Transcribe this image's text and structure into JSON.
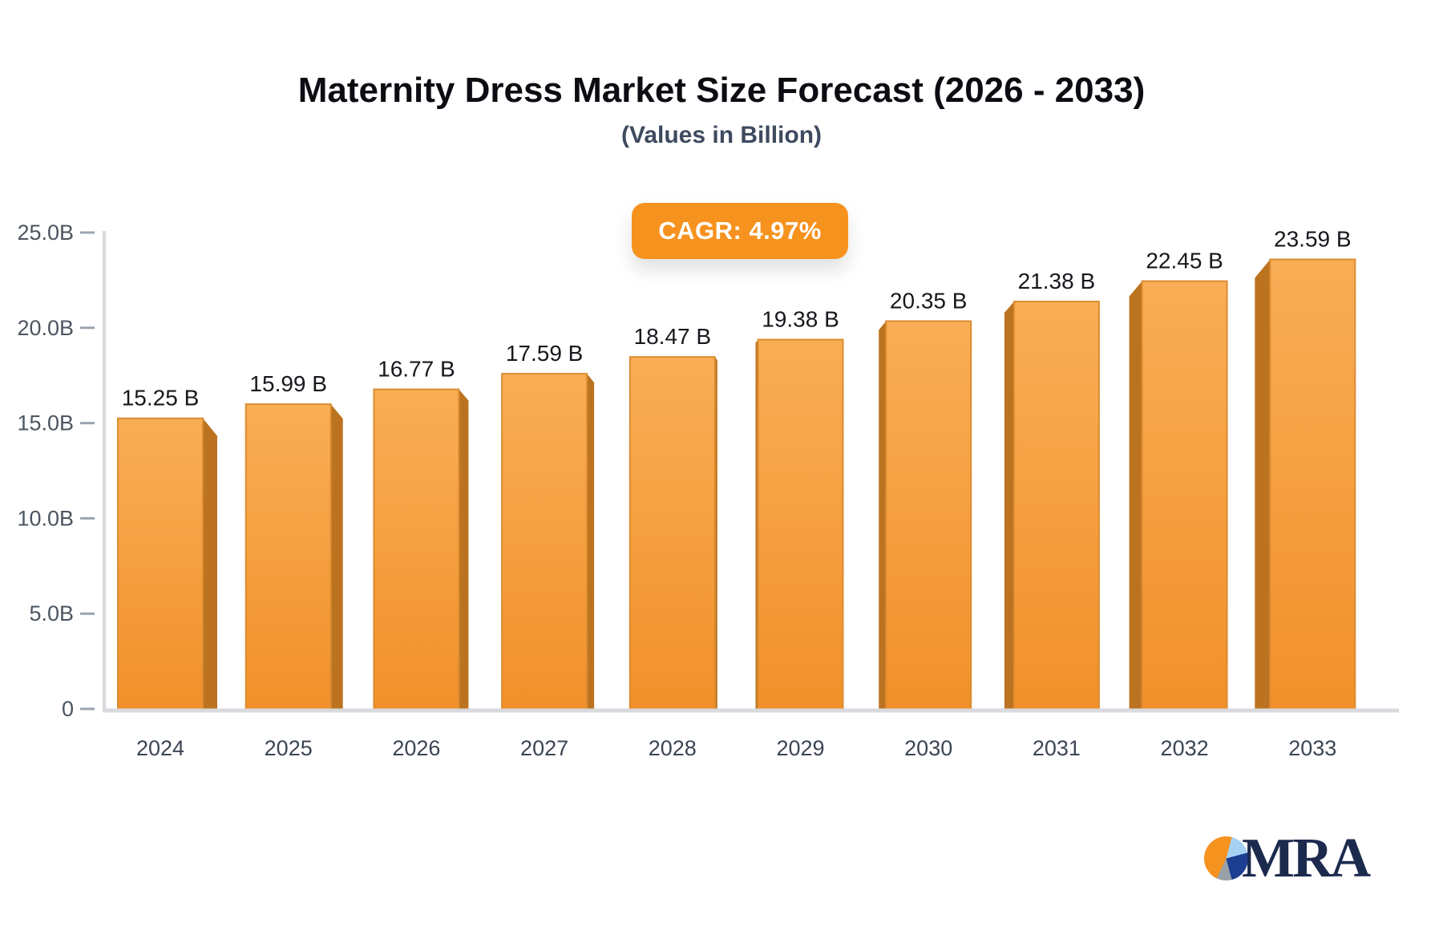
{
  "header": {
    "title": "Maternity Dress Market Size Forecast (2026 - 2033)",
    "subtitle": "(Values in Billion)",
    "cagr_label": "CAGR: 4.97%"
  },
  "logo": {
    "text": "MRA"
  },
  "colors": {
    "accent": "#F6921E",
    "bar_gradient_top": "#F9AE56",
    "bar_gradient_bottom": "#F1902A",
    "bar_side": "#BC731F",
    "bar_stroke": "#DB8C31",
    "axis_line": "#D9DADE",
    "tick_dash": "#9AA3AD",
    "y_label_color": "#4C5560",
    "x_label_color": "#3C4553",
    "value_label_color": "#17181D"
  },
  "chart_data": {
    "type": "bar",
    "title": "Maternity Dress Market Size Forecast (2026 - 2033)",
    "subtitle": "(Values in Billion)",
    "annotation": "CAGR: 4.97%",
    "categories": [
      "2024",
      "2025",
      "2026",
      "2027",
      "2028",
      "2029",
      "2030",
      "2031",
      "2032",
      "2033"
    ],
    "values": [
      15.25,
      15.99,
      16.77,
      17.59,
      18.47,
      19.38,
      20.35,
      21.38,
      22.45,
      23.59
    ],
    "value_labels": [
      "15.25 B",
      "15.99 B",
      "16.77 B",
      "17.59 B",
      "18.47 B",
      "19.38 B",
      "20.35 B",
      "21.38 B",
      "22.45 B",
      "23.59 B"
    ],
    "unit": "Billion",
    "xlabel": "",
    "ylabel": "",
    "ylim": [
      0,
      25
    ],
    "y_ticks": [
      {
        "value": 0,
        "label": "0"
      },
      {
        "value": 5,
        "label": "5.0B"
      },
      {
        "value": 10,
        "label": "10.0B"
      },
      {
        "value": 15,
        "label": "15.0B"
      },
      {
        "value": 20,
        "label": "20.0B"
      },
      {
        "value": 25,
        "label": "25.0B"
      }
    ],
    "grid": false,
    "legend": false,
    "style": "3d-extruded-bars-perspective"
  }
}
